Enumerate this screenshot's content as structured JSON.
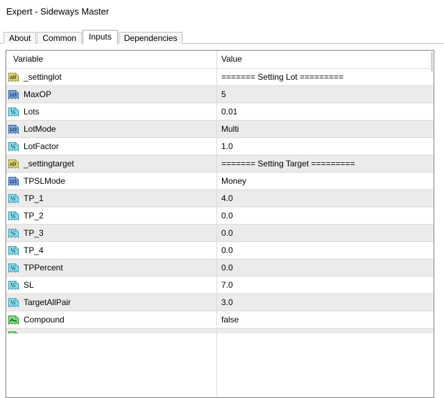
{
  "window": {
    "title": "Expert - Sideways Master"
  },
  "tabs": [
    {
      "label": "About",
      "active": false
    },
    {
      "label": "Common",
      "active": false
    },
    {
      "label": "Inputs",
      "active": true
    },
    {
      "label": "Dependencies",
      "active": false
    }
  ],
  "table": {
    "columns": {
      "variable": "Variable",
      "value": "Value"
    },
    "rows": [
      {
        "icon": "string-icon",
        "variable": "_settinglot",
        "value": "======= Setting Lot =========",
        "shaded": false,
        "partial": false
      },
      {
        "icon": "integer-icon",
        "variable": "MaxOP",
        "value": "5",
        "shaded": true,
        "partial": false
      },
      {
        "icon": "double-icon",
        "variable": "Lots",
        "value": "0.01",
        "shaded": false,
        "partial": false
      },
      {
        "icon": "integer-icon",
        "variable": "LotMode",
        "value": "Multi",
        "shaded": true,
        "partial": false
      },
      {
        "icon": "double-icon",
        "variable": "LotFactor",
        "value": "1.0",
        "shaded": false,
        "partial": false
      },
      {
        "icon": "string-icon",
        "variable": "_settingtarget",
        "value": "======= Setting Target =========",
        "shaded": true,
        "partial": false
      },
      {
        "icon": "integer-icon",
        "variable": "TPSLMode",
        "value": "Money",
        "shaded": false,
        "partial": false
      },
      {
        "icon": "double-icon",
        "variable": "TP_1",
        "value": "4.0",
        "shaded": true,
        "partial": false
      },
      {
        "icon": "double-icon",
        "variable": "TP_2",
        "value": "0.0",
        "shaded": false,
        "partial": false
      },
      {
        "icon": "double-icon",
        "variable": "TP_3",
        "value": "0.0",
        "shaded": true,
        "partial": false
      },
      {
        "icon": "double-icon",
        "variable": "TP_4",
        "value": "0.0",
        "shaded": false,
        "partial": false
      },
      {
        "icon": "double-icon",
        "variable": "TPPercent",
        "value": "0.0",
        "shaded": true,
        "partial": false
      },
      {
        "icon": "double-icon",
        "variable": "SL",
        "value": "7.0",
        "shaded": false,
        "partial": false
      },
      {
        "icon": "double-icon",
        "variable": "TargetAllPair",
        "value": "3.0",
        "shaded": true,
        "partial": false
      },
      {
        "icon": "boolean-icon",
        "variable": "Compound",
        "value": "false",
        "shaded": false,
        "partial": false
      },
      {
        "icon": "boolean-icon",
        "variable": "",
        "value": "",
        "shaded": true,
        "partial": true
      }
    ],
    "icons": {
      "string-icon": {
        "glyph": "ab",
        "fill": "#ded878",
        "stroke": "#9c9240",
        "text": "#4a431a",
        "fontSize": 8
      },
      "integer-icon": {
        "glyph": "123",
        "fill": "#78a5dc",
        "stroke": "#3f6aa5",
        "text": "#132f54",
        "fontSize": 6
      },
      "double-icon": {
        "glyph": "½",
        "fill": "#8fdcec",
        "stroke": "#3d9db4",
        "text": "#0f5666",
        "fontSize": 9
      },
      "boolean-icon": {
        "glyph": "",
        "fill": "#84da84",
        "stroke": "#379b37",
        "text": "#175f17",
        "fontSize": 0
      }
    },
    "shaded_row_color": "#ebebeb",
    "grid_line_color": "#dcdcdc",
    "border_color": "#848484"
  }
}
